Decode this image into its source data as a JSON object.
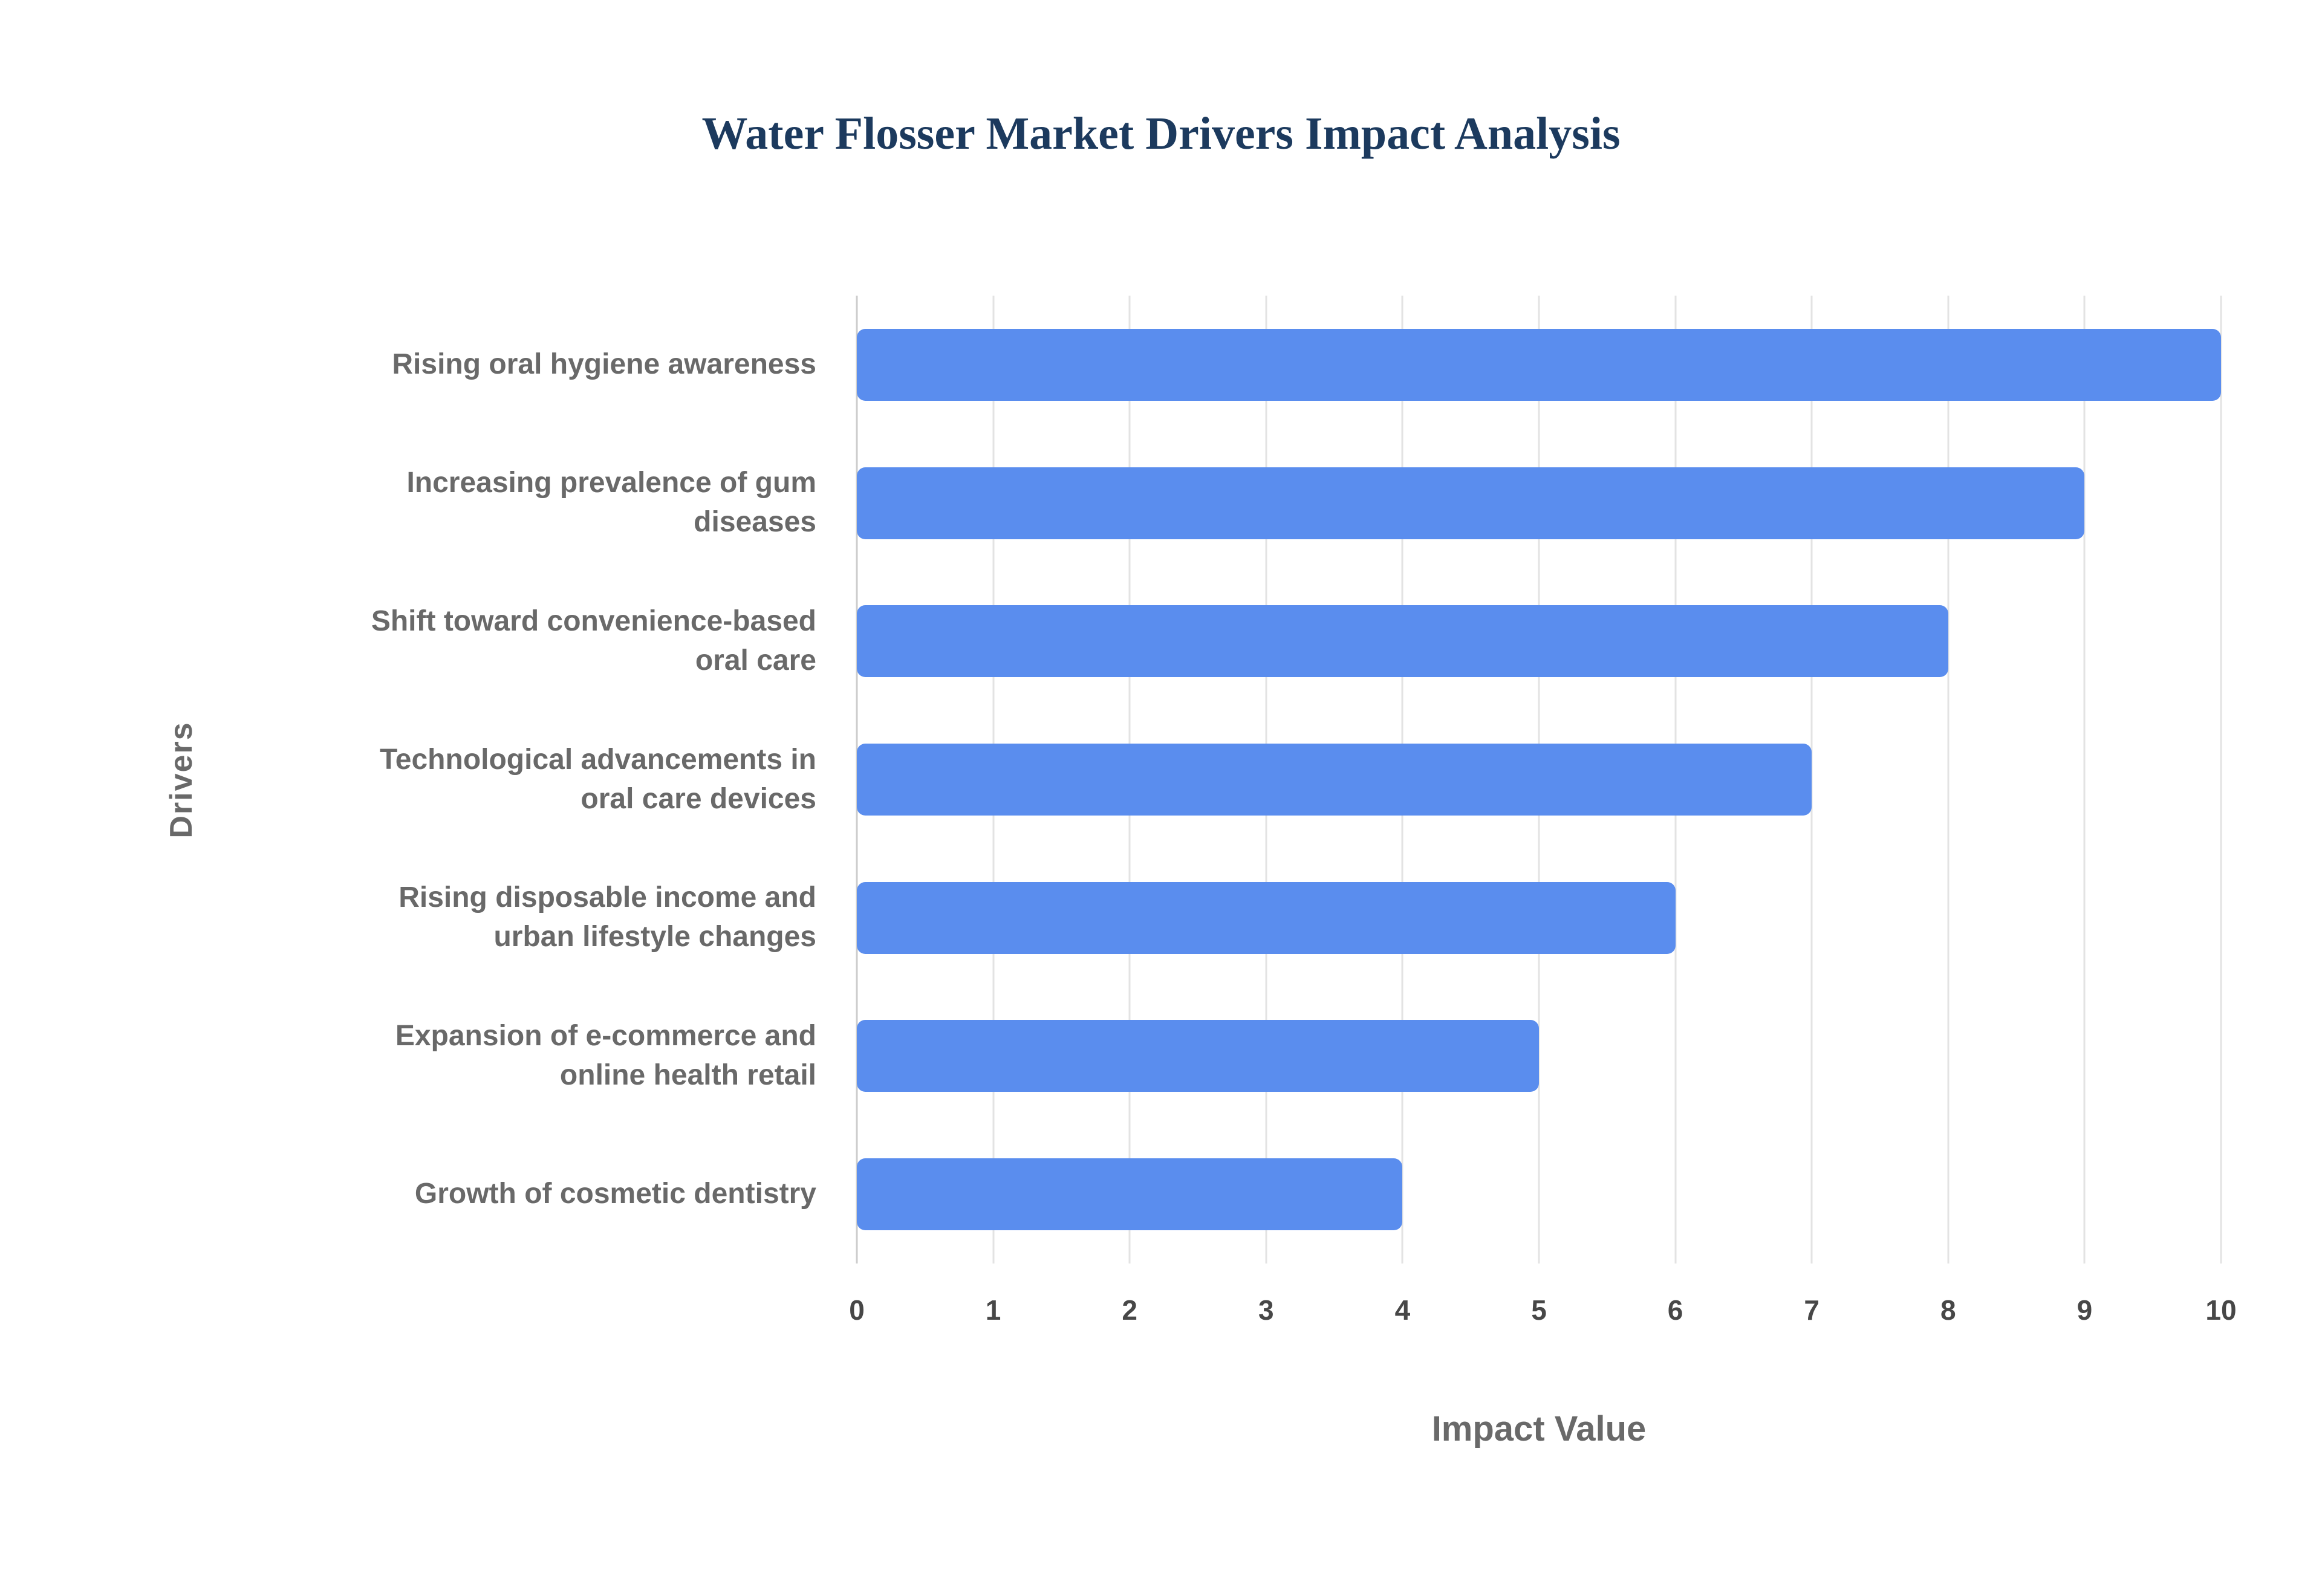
{
  "title": "Water Flosser Market Drivers Impact Analysis",
  "chart_data": {
    "type": "bar",
    "orientation": "horizontal",
    "title": "Water Flosser Market Drivers Impact Analysis",
    "categories": [
      "Rising oral hygiene awareness",
      "Increasing prevalence of gum\ndiseases",
      "Shift toward convenience-based\noral care",
      "Technological advancements in\noral care devices",
      "Rising disposable income and\nurban lifestyle changes",
      "Expansion of e-commerce and\nonline health retail",
      "Growth of cosmetic dentistry"
    ],
    "values": [
      10,
      9,
      8,
      7,
      6,
      5,
      4
    ],
    "xlabel": "Impact Value",
    "ylabel": "Drivers",
    "xlim": [
      0,
      10
    ],
    "xticks": [
      0,
      1,
      2,
      3,
      4,
      5,
      6,
      7,
      8,
      9,
      10
    ],
    "grid": true,
    "legend": false,
    "bar_color": "#5a8dee",
    "title_color": "#1c3a5e",
    "axis_label_color": "#696969",
    "tick_color": "#474747",
    "gridline_color": "#e3e3e3"
  }
}
